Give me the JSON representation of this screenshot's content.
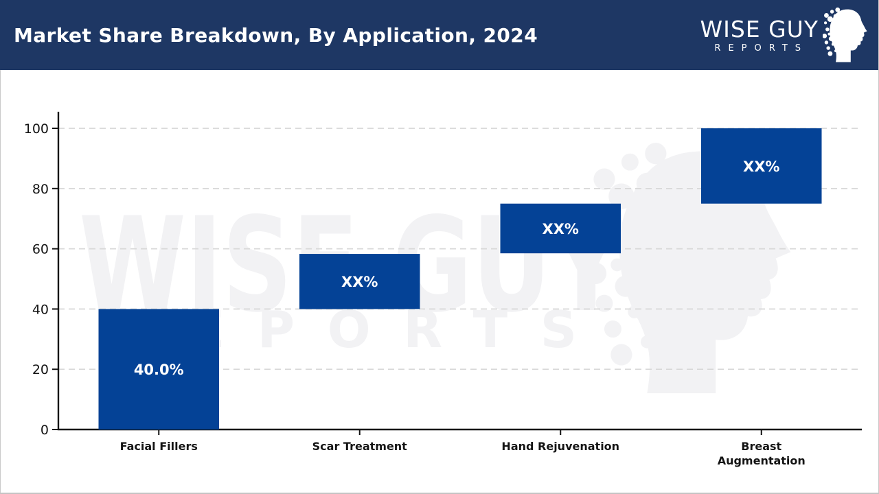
{
  "header": {
    "title": "Market Share Breakdown, By Application, 2024",
    "logo": {
      "name": "WISE GUY",
      "sub": "REPORTS",
      "icon": "dotted-face-profile"
    }
  },
  "watermark": {
    "line1": "WISE GUY",
    "line2": "REPORTS"
  },
  "colors": {
    "header_bg": "#1e3764",
    "bar": "#044296",
    "grid": "#d8d8d8",
    "axis": "#141414",
    "tick_label": "#141414",
    "value_label": "#ffffff",
    "watermark": "#f2f2f4"
  },
  "chart_data": {
    "type": "bar",
    "subtype": "waterfall",
    "title": "Market Share Breakdown, By Application, 2024",
    "categories": [
      "Facial Fillers",
      "Scar Treatment",
      "Hand Rejuvenation",
      "Breast\nAugmentation"
    ],
    "segments": [
      {
        "category": "Facial Fillers",
        "start": 0,
        "end": 40,
        "label": "40.0%"
      },
      {
        "category": "Scar Treatment",
        "start": 40,
        "end": 58.3,
        "label": "XX%"
      },
      {
        "category": "Hand Rejuvenation",
        "start": 58.5,
        "end": 75,
        "label": "XX%"
      },
      {
        "category": "Breast Augmentation",
        "start": 75,
        "end": 100,
        "label": "XX%"
      }
    ],
    "yticks": [
      0,
      20,
      40,
      60,
      80,
      100
    ],
    "ylim": [
      0,
      105.5
    ],
    "xlabel": "",
    "ylabel": "",
    "grid": "horizontal-dashed",
    "legend": "none"
  }
}
